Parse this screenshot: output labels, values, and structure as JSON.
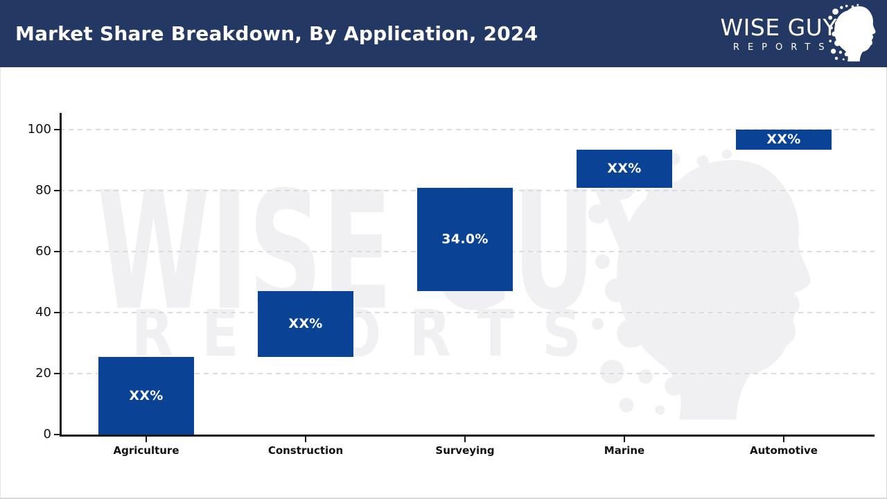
{
  "header": {
    "title": "Market Share Breakdown, By Application, 2024",
    "bg_color": "#233863",
    "brand": {
      "line1": "WISE GUY",
      "line2": "REPORTS"
    }
  },
  "watermark": {
    "line1": "WISE GUY",
    "line2": "REPORTS",
    "color": "#f0f0f2"
  },
  "chart_data": {
    "type": "bar",
    "subtype": "waterfall",
    "title": "Market Share Breakdown, By Application, 2024",
    "categories": [
      "Agriculture",
      "Construction",
      "Surveying",
      "Marine",
      "Automotive"
    ],
    "segments": [
      {
        "category": "Agriculture",
        "start": 0,
        "end": 25.5,
        "label": "XX%"
      },
      {
        "category": "Construction",
        "start": 25.5,
        "end": 47.0,
        "label": "XX%"
      },
      {
        "category": "Surveying",
        "start": 47.0,
        "end": 81.0,
        "label": "34.0%",
        "value": 34.0
      },
      {
        "category": "Marine",
        "start": 81.0,
        "end": 93.5,
        "label": "XX%"
      },
      {
        "category": "Automotive",
        "start": 93.5,
        "end": 100.0,
        "label": "XX%"
      }
    ],
    "y_ticks": [
      0,
      20,
      40,
      60,
      80,
      100
    ],
    "ylim": [
      0,
      105
    ],
    "xlabel": "",
    "ylabel": "",
    "grid": "dashed-horizontal",
    "legend": "none",
    "bar_color": "#0a4296",
    "grid_color": "#dcdcdc",
    "axis_color": "#161616"
  }
}
